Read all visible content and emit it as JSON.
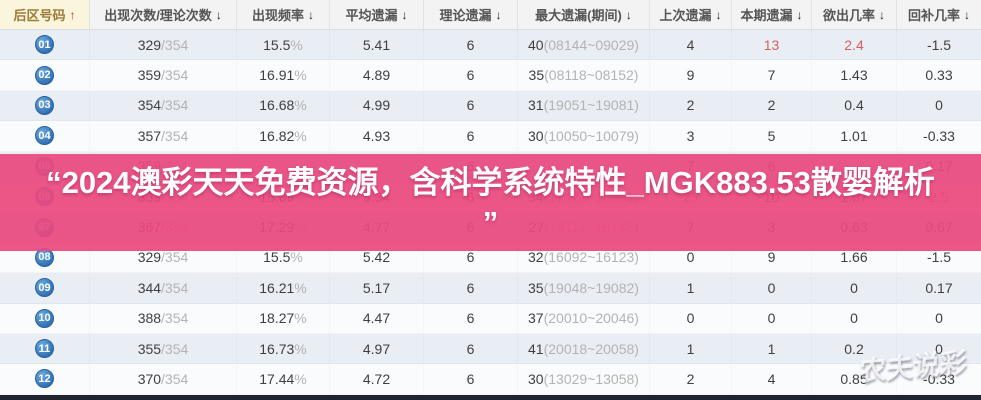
{
  "table": {
    "columns": [
      {
        "label": "后区号码",
        "arrow": "↑"
      },
      {
        "label": "出现次数/理论次数",
        "arrow": "↓"
      },
      {
        "label": "出现频率",
        "arrow": "↓"
      },
      {
        "label": "平均遗漏",
        "arrow": "↓"
      },
      {
        "label": "理论遗漏",
        "arrow": "↓"
      },
      {
        "label": "最大遗漏(期间)",
        "arrow": "↓"
      },
      {
        "label": "上次遗漏",
        "arrow": "↓"
      },
      {
        "label": "本期遗漏",
        "arrow": "↓"
      },
      {
        "label": "欲出几率",
        "arrow": "↓"
      },
      {
        "label": "回补几率",
        "arrow": "↓"
      }
    ],
    "rows": [
      {
        "num": "01",
        "count": {
          "m": "329",
          "s": "/354"
        },
        "freq": {
          "m": "15.5",
          "s": "%"
        },
        "avg": "5.41",
        "theory": "6",
        "max": {
          "m": "40",
          "s": "(08144~09029)"
        },
        "last": "4",
        "current": "13",
        "want": "2.4",
        "back": "-1.5",
        "red": [
          "current",
          "want"
        ]
      },
      {
        "num": "02",
        "count": {
          "m": "359",
          "s": "/354"
        },
        "freq": {
          "m": "16.91",
          "s": "%"
        },
        "avg": "4.89",
        "theory": "6",
        "max": {
          "m": "35",
          "s": "(08118~08152)"
        },
        "last": "9",
        "current": "7",
        "want": "1.43",
        "back": "0.33",
        "red": []
      },
      {
        "num": "03",
        "count": {
          "m": "354",
          "s": "/354"
        },
        "freq": {
          "m": "16.68",
          "s": "%"
        },
        "avg": "4.99",
        "theory": "6",
        "max": {
          "m": "31",
          "s": "(19051~19081)"
        },
        "last": "2",
        "current": "2",
        "want": "0.4",
        "back": "0",
        "red": []
      },
      {
        "num": "04",
        "count": {
          "m": "357",
          "s": "/354"
        },
        "freq": {
          "m": "16.82",
          "s": "%"
        },
        "avg": "4.93",
        "theory": "6",
        "max": {
          "m": "30",
          "s": "(10050~10079)"
        },
        "last": "3",
        "current": "5",
        "want": "1.01",
        "back": "-0.33",
        "red": []
      },
      {
        "num": "05",
        "count": {
          "m": "359",
          "s": "/354"
        },
        "freq": {
          "m": "",
          "s": ""
        },
        "avg": "",
        "theory": "6",
        "max": {
          "m": "",
          "s": ""
        },
        "last": "7",
        "current": "6",
        "want": "",
        "back": "0.17",
        "red": []
      },
      {
        "num": "06",
        "count": {
          "m": "333",
          "s": "/354"
        },
        "freq": {
          "m": "15.69",
          "s": "%"
        },
        "avg": "5.34",
        "theory": "6",
        "max": {
          "m": "34",
          "s": "(17121~18001)"
        },
        "last": "25",
        "current": "10",
        "want": "1.87",
        "back": "2.5",
        "red": [
          "last",
          "back"
        ]
      },
      {
        "num": "07",
        "count": {
          "m": "367",
          "s": "/354"
        },
        "freq": {
          "m": "17.29",
          "s": "%"
        },
        "avg": "4.77",
        "theory": "6",
        "max": {
          "m": "27",
          "s": "(18117~18143)"
        },
        "last": "7",
        "current": "3",
        "want": "0.63",
        "back": "0.67",
        "red": []
      },
      {
        "num": "08",
        "count": {
          "m": "329",
          "s": "/354"
        },
        "freq": {
          "m": "15.5",
          "s": "%"
        },
        "avg": "5.42",
        "theory": "6",
        "max": {
          "m": "32",
          "s": "(16092~16123)"
        },
        "last": "0",
        "current": "9",
        "want": "1.66",
        "back": "-1.5",
        "red": []
      },
      {
        "num": "09",
        "count": {
          "m": "344",
          "s": "/354"
        },
        "freq": {
          "m": "16.21",
          "s": "%"
        },
        "avg": "5.17",
        "theory": "6",
        "max": {
          "m": "35",
          "s": "(19048~19082)"
        },
        "last": "1",
        "current": "0",
        "want": "0",
        "back": "0.17",
        "red": []
      },
      {
        "num": "10",
        "count": {
          "m": "388",
          "s": "/354"
        },
        "freq": {
          "m": "18.27",
          "s": "%"
        },
        "avg": "4.47",
        "theory": "6",
        "max": {
          "m": "37",
          "s": "(20010~20046)"
        },
        "last": "0",
        "current": "0",
        "want": "0",
        "back": "0",
        "red": []
      },
      {
        "num": "11",
        "count": {
          "m": "355",
          "s": "/354"
        },
        "freq": {
          "m": "16.73",
          "s": "%"
        },
        "avg": "4.97",
        "theory": "6",
        "max": {
          "m": "41",
          "s": "(20018~20058)"
        },
        "last": "1",
        "current": "1",
        "want": "0.2",
        "back": "0",
        "red": []
      },
      {
        "num": "12",
        "count": {
          "m": "370",
          "s": "/354"
        },
        "freq": {
          "m": "17.44",
          "s": "%"
        },
        "avg": "4.72",
        "theory": "6",
        "max": {
          "m": "30",
          "s": "(13029~13058)"
        },
        "last": "2",
        "current": "4",
        "want": "0.85",
        "back": "-0.33",
        "red": []
      }
    ]
  },
  "banner": {
    "line1": "“2024澳彩天天免费资源，含科学系统特性_MGK883.53散婴解析",
    "line2": "”"
  },
  "watermark": {
    "text": "农夫说彩"
  },
  "colors": {
    "banner_pink": "#ea497e",
    "badge_blue": "#3a76b8",
    "red_value": "#d9605f",
    "header_first_bg": "#fbf5dd",
    "header_first_text": "#9b7b35",
    "sort_asc_arrow": "#cf2e2e",
    "bottom_bar": "#20242e"
  }
}
